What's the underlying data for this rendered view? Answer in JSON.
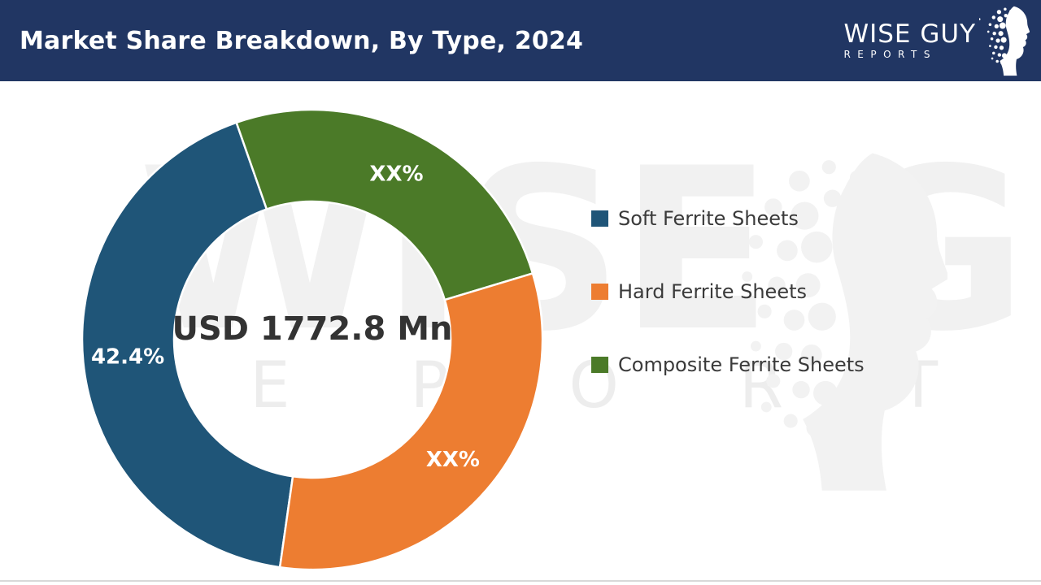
{
  "header": {
    "title": "Market Share Breakdown, By Type, 2024",
    "logo": {
      "line1": "WISE GUY",
      "line2": "REPORTS"
    }
  },
  "watermark": {
    "line1": "WISE GUY",
    "line2": "REPORTS"
  },
  "chart_data": {
    "type": "pie",
    "subtype": "donut",
    "title": "Market Share Breakdown, By Type, 2024",
    "center_label": "USD 1772.8 Mn",
    "legend_position": "right",
    "segments": [
      {
        "name": "Soft Ferrite Sheets",
        "value_pct": 42.4,
        "display_label": "42.4%",
        "color": "#1F5578"
      },
      {
        "name": "Hard Ferrite Sheets",
        "value_pct": 31.9,
        "display_label": "XX%",
        "color": "#ED7D31"
      },
      {
        "name": "Composite Ferrite Sheets",
        "value_pct": 25.7,
        "display_label": "XX%",
        "color": "#4B7A28"
      }
    ],
    "layout": {
      "center": [
        384,
        318
      ],
      "outer_radius": 283,
      "inner_radius": 170,
      "label_radius": 228,
      "start_angle_deg": -98.1,
      "draw_order": [
        0,
        2,
        1
      ]
    }
  },
  "colors": {
    "header_bg": "#213663",
    "watermark": "#F1F1F1",
    "center_text": "#333333",
    "legend_text": "#3A3A3A"
  }
}
